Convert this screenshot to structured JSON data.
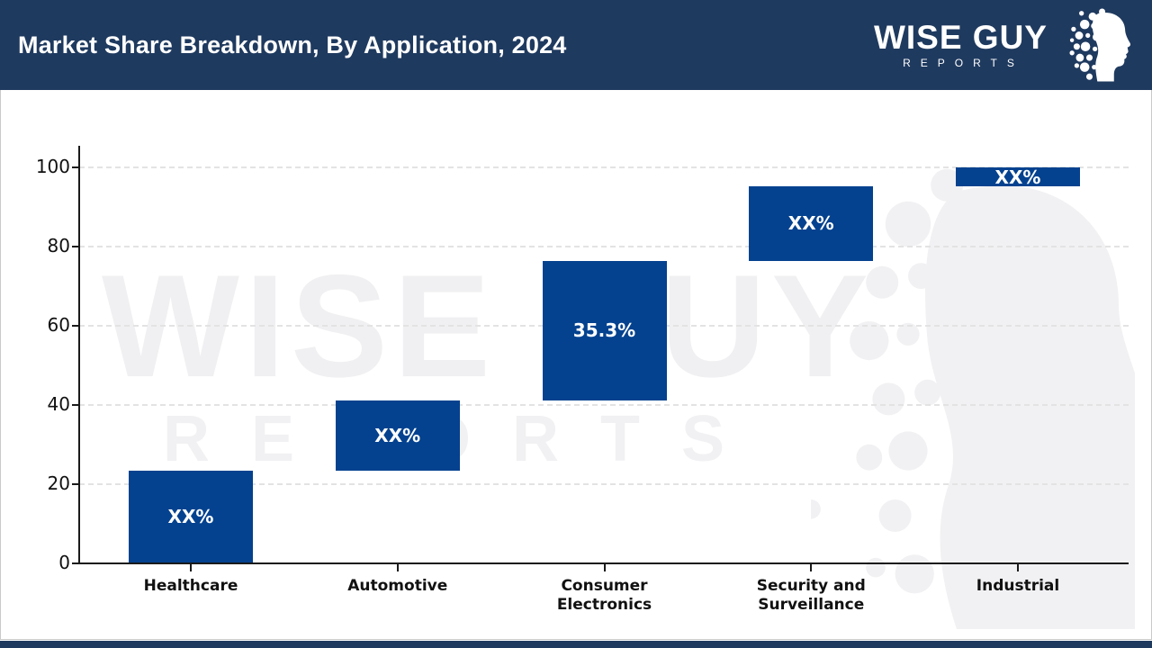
{
  "theme": {
    "header_bg": "#1f3a5f",
    "title_color": "#ffffff",
    "watermark_color": "#f0f0f2"
  },
  "header": {
    "title": "Market Share Breakdown, By Application, 2024",
    "logo": {
      "line1": "WISE GUY",
      "line2": "REPORTS"
    }
  },
  "watermark": {
    "line1": "WISE GUY",
    "line2": "REPORTS"
  },
  "chart_data": {
    "type": "bar",
    "subtype": "waterfall",
    "title": "Market Share Breakdown, By Application, 2024",
    "xlabel": "",
    "ylabel": "",
    "ylim": [
      0,
      100
    ],
    "y_ticks": [
      0,
      20,
      40,
      60,
      80,
      100
    ],
    "grid": "horizontal-dashed",
    "legend": "none",
    "bar_color": "#04428f",
    "categories": [
      "Healthcare",
      "Automotive",
      "Consumer\nElectronics",
      "Security and\nSurveillance",
      "Industrial"
    ],
    "bars": [
      {
        "category": "Healthcare",
        "start": 0,
        "end": 23.5,
        "value_label": "XX%"
      },
      {
        "category": "Automotive",
        "start": 23.5,
        "end": 41.1,
        "value_label": "XX%"
      },
      {
        "category": "Consumer Electronics",
        "start": 41.1,
        "end": 76.4,
        "value_label": "35.3%"
      },
      {
        "category": "Security and Surveillance",
        "start": 76.4,
        "end": 95.2,
        "value_label": "XX%"
      },
      {
        "category": "Industrial",
        "start": 95.2,
        "end": 100,
        "value_label": "XX%"
      }
    ]
  }
}
